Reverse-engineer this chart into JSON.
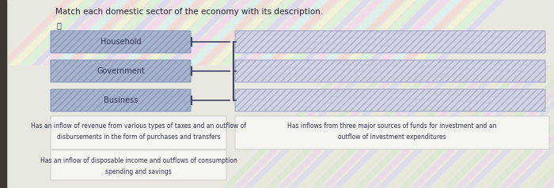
{
  "title": "Match each domestic sector of the economy with its description.",
  "sectors": [
    "Household",
    "Government",
    "Business"
  ],
  "desc_gov_1": "Has an inflow of revenue from various types of taxes and an outflow of",
  "desc_gov_2": "disbursements in the form of purchases and transfers",
  "desc_biz_1": "Has inflows from three major sources of funds for investment and an",
  "desc_biz_2": "outflow of investment expenditures",
  "desc_hh_1": "Has an inflow of disposable income and outflows of consumption",
  "desc_hh_2": "spending and savings",
  "page_bg": "#e8e8e0",
  "content_bg": "#f0efe8",
  "sector_box_fill": "#a8b4cc",
  "sector_box_edge": "#8899bb",
  "answer_box_fill": "#d0d4e0",
  "answer_box_edge": "#aaaacc",
  "bottom_box_fill": "#f5f5f2",
  "bottom_box_edge": "#cccccc",
  "text_color": "#333355",
  "title_color": "#222233",
  "arrow_color": "#444466",
  "stripe_colors_top": [
    "#ddeecc",
    "#ccddee",
    "#eeddcc",
    "#ddeedd"
  ],
  "stripe_colors_bottom": [
    "#ffcccc",
    "#ffffcc",
    "#ccffcc",
    "#ccccff",
    "#ffccff"
  ],
  "left_dark_edge": "#555544"
}
